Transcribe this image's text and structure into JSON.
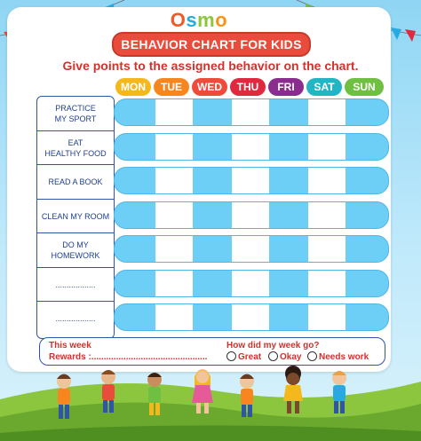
{
  "logo": {
    "text": "Osmo",
    "colors": [
      "#f05a28",
      "#27aae1",
      "#8cc63f",
      "#f7941d"
    ]
  },
  "title": "BEHAVIOR CHART FOR KIDS",
  "instruction": "Give points to the assigned behavior on the chart.",
  "days": [
    {
      "label": "MON",
      "color": "#f5b81c"
    },
    {
      "label": "TUE",
      "color": "#f7861f"
    },
    {
      "label": "WED",
      "color": "#ef4b3d"
    },
    {
      "label": "THU",
      "color": "#e0283f"
    },
    {
      "label": "FRI",
      "color": "#8a2d8f"
    },
    {
      "label": "SAT",
      "color": "#22b6c4"
    },
    {
      "label": "SUN",
      "color": "#6fbf43"
    }
  ],
  "behaviors": [
    {
      "line1": "PRACTICE",
      "line2": "MY SPORT"
    },
    {
      "line1": "EAT",
      "line2": "HEALTHY FOOD"
    },
    {
      "line1": "READ A BOOK",
      "line2": ""
    },
    {
      "line1": "CLEAN MY ROOM",
      "line2": ""
    },
    {
      "line1": "DO MY",
      "line2": "HOMEWORK"
    },
    {
      "line1": "..................",
      "line2": ""
    },
    {
      "line1": "..................",
      "line2": ""
    }
  ],
  "rewards": {
    "line1": "This week",
    "line2": "Rewards :...............................................",
    "question": "How did my week go?",
    "options": [
      "Great",
      "Okay",
      "Needs work"
    ]
  },
  "colors": {
    "cell_blue": "#6ecff6",
    "border_blue": "#2e55a8",
    "accent_red": "#d2322d"
  }
}
